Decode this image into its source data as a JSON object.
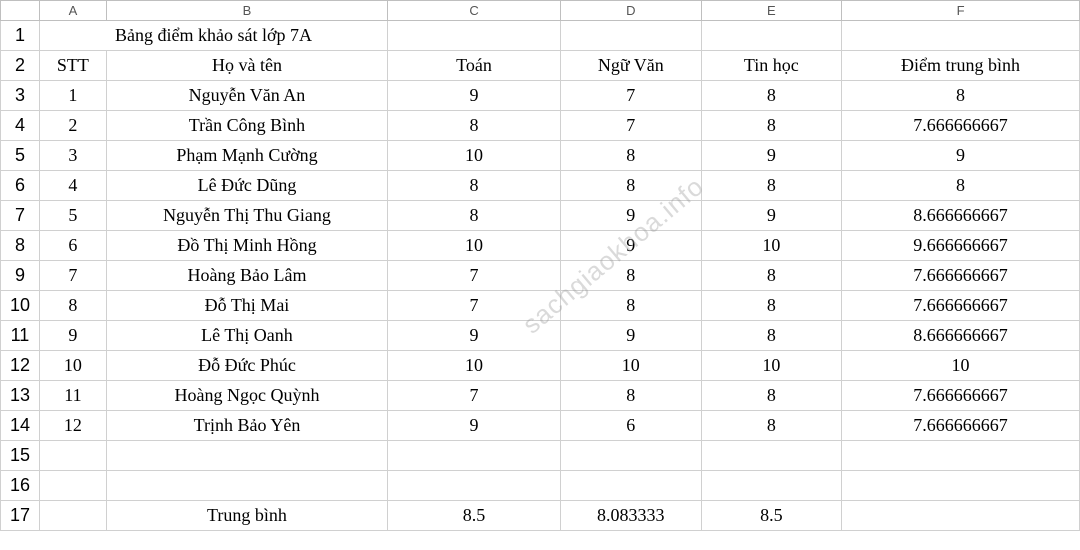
{
  "columns": [
    "A",
    "B",
    "C",
    "D",
    "E",
    "F"
  ],
  "rowCount": 17,
  "title": "Bảng điểm khảo sát lớp 7A",
  "headers": {
    "stt": "STT",
    "name": "Họ và tên",
    "math": "Toán",
    "lit": "Ngữ Văn",
    "cs": "Tin học",
    "avg": "Điểm trung bình"
  },
  "rows": [
    {
      "stt": "1",
      "name": "Nguyễn Văn An",
      "math": "9",
      "lit": "7",
      "cs": "8",
      "avg": "8"
    },
    {
      "stt": "2",
      "name": "Trần Công Bình",
      "math": "8",
      "lit": "7",
      "cs": "8",
      "avg": "7.666666667"
    },
    {
      "stt": "3",
      "name": "Phạm Mạnh Cường",
      "math": "10",
      "lit": "8",
      "cs": "9",
      "avg": "9"
    },
    {
      "stt": "4",
      "name": "Lê Đức Dũng",
      "math": "8",
      "lit": "8",
      "cs": "8",
      "avg": "8"
    },
    {
      "stt": "5",
      "name": "Nguyễn Thị Thu Giang",
      "math": "8",
      "lit": "9",
      "cs": "9",
      "avg": "8.666666667"
    },
    {
      "stt": "6",
      "name": "Đồ Thị Minh Hồng",
      "math": "10",
      "lit": "9",
      "cs": "10",
      "avg": "9.666666667"
    },
    {
      "stt": "7",
      "name": "Hoàng Bảo Lâm",
      "math": "7",
      "lit": "8",
      "cs": "8",
      "avg": "7.666666667"
    },
    {
      "stt": "8",
      "name": "Đỗ Thị Mai",
      "math": "7",
      "lit": "8",
      "cs": "8",
      "avg": "7.666666667"
    },
    {
      "stt": "9",
      "name": "Lê Thị Oanh",
      "math": "9",
      "lit": "9",
      "cs": "8",
      "avg": "8.666666667"
    },
    {
      "stt": "10",
      "name": "Đỗ Đức Phúc",
      "math": "10",
      "lit": "10",
      "cs": "10",
      "avg": "10"
    },
    {
      "stt": "11",
      "name": "Hoàng Ngọc Quỳnh",
      "math": "7",
      "lit": "8",
      "cs": "8",
      "avg": "7.666666667"
    },
    {
      "stt": "12",
      "name": "Trịnh Bảo Yên",
      "math": "9",
      "lit": "6",
      "cs": "8",
      "avg": "7.666666667"
    }
  ],
  "footer": {
    "label": "Trung bình",
    "math": "8.5",
    "lit": "8.083333",
    "cs": "8.5"
  },
  "watermark": "sachgiaokhoa.info",
  "colors": {
    "border": "#d0d0d0",
    "headerBorder": "#bfbfbf",
    "text": "#000000",
    "headerText": "#555555",
    "background": "#ffffff"
  }
}
